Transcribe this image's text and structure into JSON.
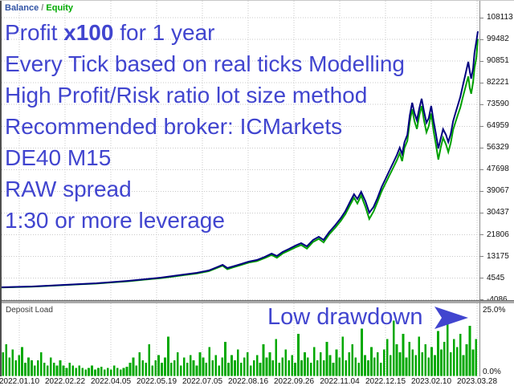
{
  "colors": {
    "balance_line": "#00007f",
    "equity_line": "#00a000",
    "deposit_bars": "#00a800",
    "overlay_text": "#4145cf",
    "legend_balance": "#3254a5",
    "legend_equity": "#00aa00",
    "grid": "#c9c9c9"
  },
  "legend": {
    "balance_label": "Balance",
    "separator": "/",
    "equity_label": "Equity"
  },
  "overlay": {
    "line1_prefix": "Profit ",
    "line1_bold": "x100",
    "line1_suffix": " for 1 year",
    "lines": [
      "Every Tick based on real ticks Modelling",
      "High Profit/Risk ratio lot size method",
      "Recommended broker: ICMarkets",
      "DE40 M15",
      "RAW spread",
      "1:30 or more leverage"
    ],
    "drawdown_note": "Low drawdown"
  },
  "deposit_panel": {
    "title": "Deposit Load",
    "y_max_label": "25.0%",
    "y_min_label": "0.0%"
  },
  "chart_data": [
    {
      "type": "line",
      "title": "Balance / Equity",
      "ylim": [
        -4086,
        108113
      ],
      "grid": true,
      "y_ticks": [
        108113,
        99482,
        90851,
        82221,
        73590,
        64959,
        56329,
        47698,
        39067,
        30437,
        21806,
        13175,
        4545,
        -4086
      ],
      "x_ticks": [
        "2022.01.10",
        "2022.02.22",
        "2022.04.05",
        "2022.05.19",
        "2022.07.05",
        "2022.08.16",
        "2022.09.26",
        "2022.11.04",
        "2022.12.15",
        "2023.02.10",
        "2023.03.28"
      ],
      "x": [
        0.0,
        0.03,
        0.064,
        0.098,
        0.132,
        0.165,
        0.199,
        0.233,
        0.266,
        0.3,
        0.334,
        0.359,
        0.384,
        0.41,
        0.435,
        0.452,
        0.464,
        0.474,
        0.486,
        0.503,
        0.519,
        0.536,
        0.553,
        0.567,
        0.578,
        0.59,
        0.604,
        0.617,
        0.629,
        0.641,
        0.654,
        0.666,
        0.676,
        0.688,
        0.7,
        0.712,
        0.722,
        0.732,
        0.74,
        0.747,
        0.755,
        0.764,
        0.772,
        0.781,
        0.789,
        0.798,
        0.806,
        0.814,
        0.823,
        0.83,
        0.836,
        0.841,
        0.846,
        0.852,
        0.857,
        0.862,
        0.867,
        0.872,
        0.877,
        0.882,
        0.887,
        0.892,
        0.897,
        0.902,
        0.907,
        0.912,
        0.917,
        0.922,
        0.927,
        0.933,
        0.938,
        0.943,
        0.948,
        0.953,
        0.958,
        0.963,
        0.968,
        0.973,
        0.976,
        0.98,
        0.983,
        0.986,
        0.99,
        0.993,
        0.997,
        1.0
      ],
      "series": [
        {
          "name": "Balance",
          "values": [
            929,
            1089,
            1248,
            1567,
            1886,
            2205,
            2524,
            3003,
            3481,
            4119,
            4757,
            5395,
            6033,
            6671,
            7628,
            8904,
            9861,
            8585,
            9223,
            10180,
            11137,
            11775,
            13051,
            14327,
            13370,
            14965,
            16241,
            17517,
            18474,
            17198,
            19750,
            21026,
            19750,
            22940,
            25492,
            28363,
            31234,
            35062,
            37933,
            36019,
            38890,
            35062,
            30596,
            32829,
            36338,
            40804,
            43994,
            47184,
            50693,
            53564,
            56435,
            53883,
            58668,
            61539,
            69195,
            74299,
            70152,
            67281,
            72066,
            75894,
            70790,
            66324,
            68238,
            73023,
            66962,
            61858,
            56116,
            59944,
            63772,
            61539,
            58668,
            61858,
            66962,
            70152,
            73342,
            76532,
            80679,
            84826,
            87378,
            90568,
            86740,
            83869,
            88016,
            94077,
            98862,
            102690
          ]
        },
        {
          "name": "Equity",
          "values": [
            869,
            1019,
            1168,
            1477,
            1786,
            2095,
            2404,
            2863,
            3321,
            3939,
            4557,
            5175,
            5793,
            6401,
            7328,
            8574,
            9501,
            8085,
            8823,
            9800,
            10737,
            11325,
            12551,
            13777,
            12670,
            14365,
            15591,
            16817,
            17724,
            16298,
            18950,
            20176,
            18750,
            22040,
            24492,
            27263,
            30034,
            33762,
            36533,
            34219,
            37390,
            32862,
            28096,
            31029,
            34738,
            39104,
            42194,
            45284,
            48693,
            51464,
            54235,
            51083,
            56368,
            59139,
            66695,
            71699,
            66952,
            63881,
            69266,
            72994,
            67190,
            62524,
            65038,
            70023,
            62962,
            57658,
            51716,
            56344,
            60372,
            57739,
            54668,
            58258,
            63562,
            66552,
            69542,
            72332,
            76079,
            79826,
            81978,
            84768,
            80240,
            77869,
            82516,
            88077,
            92362,
            99690
          ]
        }
      ]
    },
    {
      "type": "bar",
      "title": "Deposit Load",
      "ylabel": "%",
      "ylim": [
        0,
        25
      ],
      "values": [
        9,
        12,
        7,
        10,
        6,
        8,
        11,
        5,
        7,
        6,
        4,
        6,
        9,
        5,
        4,
        7,
        5,
        4,
        6,
        4,
        3,
        5,
        4,
        3,
        4,
        3,
        2.5,
        3,
        4,
        2.5,
        3,
        3.5,
        2.5,
        3,
        2.5,
        4,
        3,
        2.5,
        3,
        3.5,
        5,
        7,
        4,
        9,
        6,
        5,
        12,
        4,
        6,
        8,
        5,
        7,
        15,
        5,
        6,
        9,
        4,
        7,
        5,
        8,
        6,
        4,
        9,
        7,
        5,
        11,
        6,
        8,
        4,
        7,
        13,
        5,
        8,
        6,
        10,
        5,
        7,
        9,
        4,
        6,
        8,
        5,
        12,
        7,
        9,
        6,
        14,
        5,
        7,
        10,
        6,
        8,
        5,
        16,
        6,
        9,
        7,
        5,
        11,
        6,
        9,
        6,
        13,
        8,
        5,
        10,
        7,
        15,
        6,
        9,
        12,
        7,
        5,
        18,
        8,
        6,
        11,
        7,
        9,
        5,
        10,
        14,
        8,
        21,
        12,
        9,
        16,
        7,
        13,
        10,
        8,
        15,
        9,
        12,
        7,
        11,
        8,
        17,
        10,
        13,
        20,
        9,
        14,
        11,
        16,
        8,
        12,
        19,
        10,
        14
      ]
    }
  ]
}
